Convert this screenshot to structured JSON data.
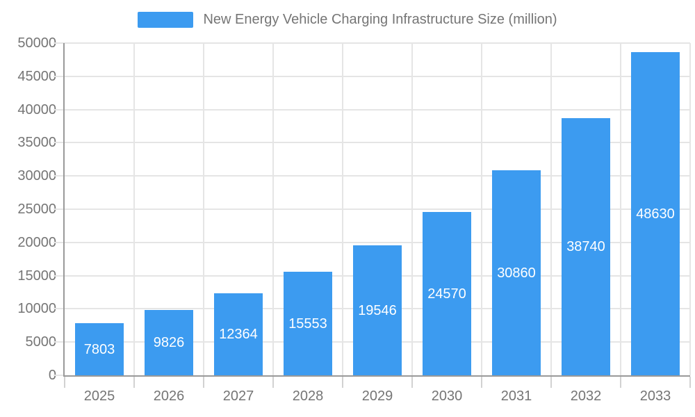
{
  "legend": {
    "label": "New Energy Vehicle Charging Infrastructure Size (million)"
  },
  "colors": {
    "bar": "#3C9BF0",
    "axis_line": "#999999",
    "grid_line": "#E5E5E5",
    "x_tick_mark": "#D2D2D2",
    "tick_text": "#757575",
    "value_label_text": "#FFFFFF",
    "background": "#FFFFFF"
  },
  "chart_data": {
    "type": "bar",
    "title": "New Energy Vehicle Charging Infrastructure Size (million)",
    "legend_entries": [
      "New Energy Vehicle Charging Infrastructure Size (million)"
    ],
    "legend_position": "top-center",
    "categories": [
      "2025",
      "2026",
      "2027",
      "2028",
      "2029",
      "2030",
      "2031",
      "2032",
      "2033"
    ],
    "series": [
      {
        "name": "New Energy Vehicle Charging Infrastructure Size (million)",
        "values": [
          7803,
          9826,
          12364,
          15553,
          19546,
          24570,
          30860,
          38740,
          48630
        ]
      }
    ],
    "value_labels": [
      "7803",
      "9826",
      "12364",
      "15553",
      "19546",
      "24570",
      "30860",
      "38740",
      "48630"
    ],
    "value_labels_position": "inside-center",
    "xlabel": "",
    "ylabel": "",
    "ylim": [
      0,
      50000
    ],
    "ytick_step": 5000,
    "ytick_labels": [
      "0",
      "5000",
      "10000",
      "15000",
      "20000",
      "25000",
      "30000",
      "35000",
      "40000",
      "45000",
      "50000"
    ],
    "grid": true
  }
}
